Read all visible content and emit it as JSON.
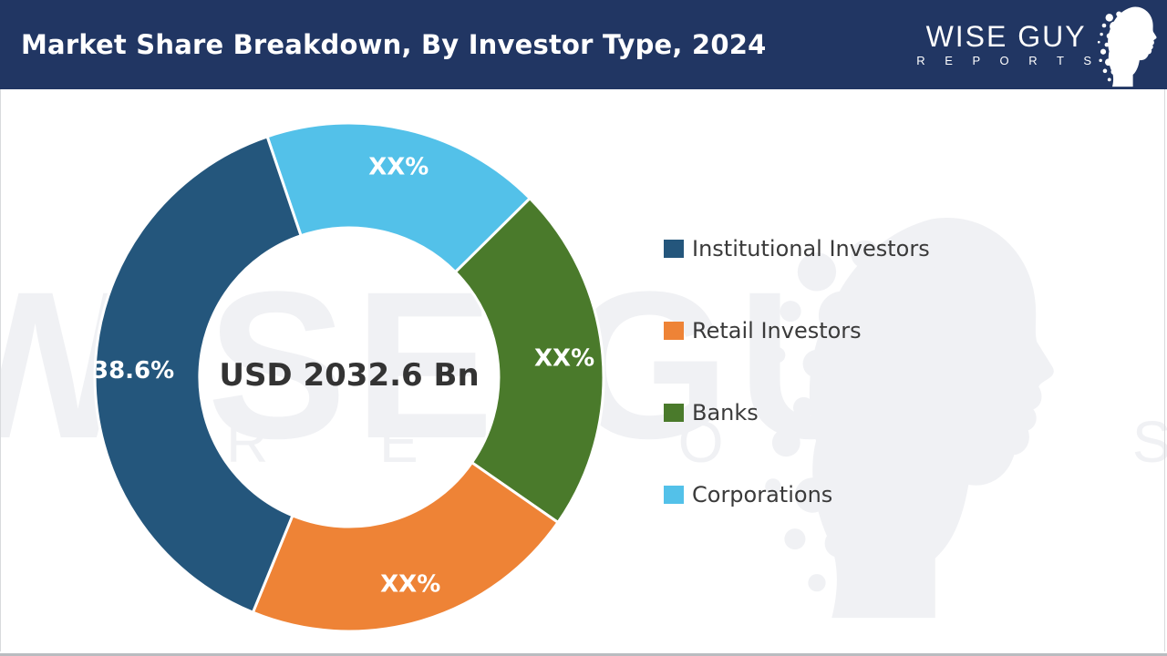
{
  "page": {
    "bg": "#ffffff",
    "border_color": "#b9bcc0"
  },
  "header": {
    "bg": "#213663",
    "title": "Market Share Breakdown, By Investor Type, 2024",
    "logo": {
      "line1": "WISE GUY",
      "line2": "R E P O R T S"
    }
  },
  "watermark": {
    "line1": "WISE GUY",
    "line2": "R E P O R T S"
  },
  "chart_data": {
    "type": "pie",
    "subtype": "donut",
    "title": "Market Share Breakdown, By Investor Type, 2024",
    "center_label": "USD 2032.6 Bn",
    "start_angle_deg": -18.8,
    "clockwise": true,
    "legend_position": "right",
    "segments": [
      {
        "name": "Corporations",
        "display_label": "XX%",
        "percent_of_circle": 17.8,
        "color": "#53C1E9"
      },
      {
        "name": "Banks",
        "display_label": "XX%",
        "percent_of_circle": 22.1,
        "color": "#4A7A2B"
      },
      {
        "name": "Retail Investors",
        "display_label": "XX%",
        "percent_of_circle": 21.5,
        "color": "#EE8336"
      },
      {
        "name": "Institutional Investors",
        "display_label": "38.6%",
        "percent_of_circle": 38.6,
        "color": "#24567C"
      }
    ]
  },
  "legend": {
    "items": [
      {
        "label": "Institutional Investors",
        "color": "#24567C"
      },
      {
        "label": "Retail Investors",
        "color": "#EE8336"
      },
      {
        "label": "Banks",
        "color": "#4A7A2B"
      },
      {
        "label": "Corporations",
        "color": "#53C1E9"
      }
    ]
  }
}
